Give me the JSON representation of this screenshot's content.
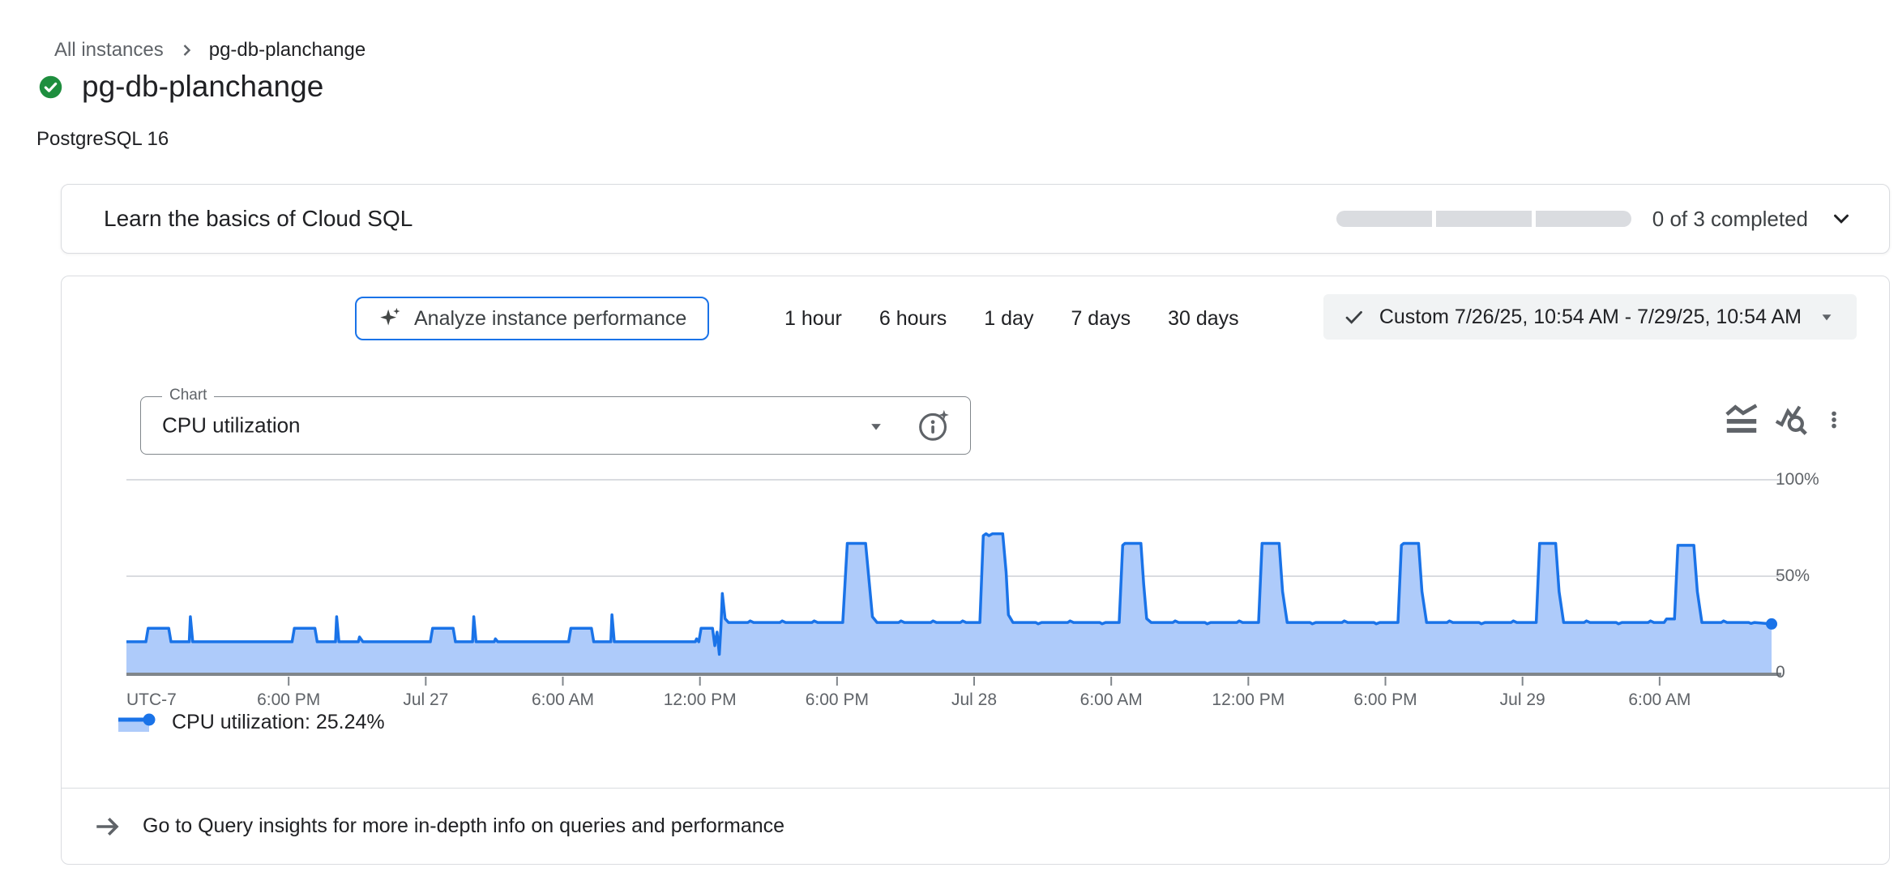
{
  "colors": {
    "accent_blue": "#1a73e8",
    "chart_line": "#1a73e8",
    "chart_fill": "#aecbfa",
    "success_green": "#1e8e3e",
    "text_dark": "#202124",
    "text_gray": "#5f6368",
    "border_gray": "#dadce0",
    "pill_bg": "#f1f3f4",
    "axis_gray": "#80868b"
  },
  "breadcrumb": {
    "root": "All instances",
    "current": "pg-db-planchange"
  },
  "header": {
    "title": "pg-db-planchange",
    "subtitle": "PostgreSQL 16",
    "status": "healthy"
  },
  "learn_card": {
    "title": "Learn the basics of Cloud SQL",
    "progress_label": "0 of 3 completed",
    "segments_total": 3,
    "segments_completed": 0
  },
  "toolbar": {
    "analyze_button": "Analyze instance performance",
    "ranges": [
      "1 hour",
      "6 hours",
      "1 day",
      "7 days",
      "30 days"
    ],
    "custom_range": "Custom 7/26/25, 10:54 AM - 7/29/25, 10:54 AM"
  },
  "chart_card": {
    "select_label": "Chart",
    "select_value": "CPU utilization",
    "legend_text": "CPU utilization: 25.24%",
    "footer_link": "Go to Query insights for more in-depth info on queries and performance"
  },
  "chart_data": {
    "type": "area",
    "title": "CPU utilization",
    "ylabel": "CPU utilization (%)",
    "ylim": [
      0,
      100
    ],
    "yticks": [
      {
        "v": 100,
        "label": "100%"
      },
      {
        "v": 50,
        "label": "50%"
      },
      {
        "v": 0,
        "label": "0"
      }
    ],
    "gridlines": [
      100,
      50
    ],
    "grid": true,
    "legend_position": "bottom-left",
    "x_axis_note": "UTC-7",
    "x_unit": "hours since 7/26/25 10:54 AM (UTC-7)",
    "xlim": [
      0,
      72
    ],
    "xticks": [
      {
        "h": 7.1,
        "label": "6:00 PM"
      },
      {
        "h": 13.1,
        "label": "Jul 27"
      },
      {
        "h": 19.1,
        "label": "6:00 AM"
      },
      {
        "h": 25.1,
        "label": "12:00 PM"
      },
      {
        "h": 31.1,
        "label": "6:00 PM"
      },
      {
        "h": 37.1,
        "label": "Jul 28"
      },
      {
        "h": 43.1,
        "label": "6:00 AM"
      },
      {
        "h": 49.1,
        "label": "12:00 PM"
      },
      {
        "h": 55.1,
        "label": "6:00 PM"
      },
      {
        "h": 61.1,
        "label": "Jul 29"
      },
      {
        "h": 67.1,
        "label": "6:00 AM"
      }
    ],
    "series": [
      {
        "name": "CPU utilization",
        "current_value": 25.24,
        "unit": "%",
        "points": [
          [
            0,
            16
          ],
          [
            0.85,
            16
          ],
          [
            0.95,
            23
          ],
          [
            1.85,
            23
          ],
          [
            1.95,
            16
          ],
          [
            2.75,
            16
          ],
          [
            2.8,
            29
          ],
          [
            2.9,
            16
          ],
          [
            7.25,
            16
          ],
          [
            7.35,
            23
          ],
          [
            8.25,
            23
          ],
          [
            8.35,
            16
          ],
          [
            9.15,
            16
          ],
          [
            9.2,
            29
          ],
          [
            9.3,
            16
          ],
          [
            10.15,
            16
          ],
          [
            10.2,
            18.5
          ],
          [
            10.35,
            16
          ],
          [
            13.3,
            16
          ],
          [
            13.4,
            23
          ],
          [
            14.3,
            23
          ],
          [
            14.4,
            16
          ],
          [
            15.15,
            16
          ],
          [
            15.2,
            29
          ],
          [
            15.3,
            16
          ],
          [
            16.1,
            16
          ],
          [
            16.15,
            17.5
          ],
          [
            16.25,
            16
          ],
          [
            19.35,
            16
          ],
          [
            19.45,
            23
          ],
          [
            20.35,
            23
          ],
          [
            20.45,
            16
          ],
          [
            21.2,
            16
          ],
          [
            21.25,
            30
          ],
          [
            21.35,
            16
          ],
          [
            24.9,
            16
          ],
          [
            24.95,
            17.5
          ],
          [
            25.05,
            16
          ],
          [
            25.15,
            23
          ],
          [
            25.65,
            23
          ],
          [
            25.75,
            14
          ],
          [
            25.85,
            21
          ],
          [
            25.95,
            9.5
          ],
          [
            26.02,
            24
          ],
          [
            26.08,
            41
          ],
          [
            26.2,
            28
          ],
          [
            26.35,
            26
          ],
          [
            27.2,
            26
          ],
          [
            27.3,
            26.8
          ],
          [
            27.45,
            26
          ],
          [
            28.6,
            26
          ],
          [
            28.7,
            26.8
          ],
          [
            28.85,
            26
          ],
          [
            30,
            26
          ],
          [
            30.1,
            26.8
          ],
          [
            30.25,
            26
          ],
          [
            31.35,
            26
          ],
          [
            31.55,
            67
          ],
          [
            32.35,
            67
          ],
          [
            32.5,
            48
          ],
          [
            32.65,
            29
          ],
          [
            32.85,
            26
          ],
          [
            33.8,
            26
          ],
          [
            33.9,
            26.8
          ],
          [
            34.05,
            26
          ],
          [
            35.2,
            26
          ],
          [
            35.3,
            26.8
          ],
          [
            35.45,
            26
          ],
          [
            36.5,
            26
          ],
          [
            36.6,
            26.8
          ],
          [
            36.75,
            26
          ],
          [
            37.35,
            26
          ],
          [
            37.5,
            71
          ],
          [
            37.62,
            72
          ],
          [
            37.75,
            71
          ],
          [
            37.9,
            72
          ],
          [
            38.35,
            72
          ],
          [
            38.5,
            52
          ],
          [
            38.6,
            30
          ],
          [
            38.8,
            26
          ],
          [
            39.8,
            26
          ],
          [
            39.9,
            25.3
          ],
          [
            40.05,
            26
          ],
          [
            41.2,
            26
          ],
          [
            41.3,
            26.8
          ],
          [
            41.45,
            26
          ],
          [
            42.6,
            26
          ],
          [
            42.7,
            25.3
          ],
          [
            42.85,
            26
          ],
          [
            43.45,
            26
          ],
          [
            43.6,
            66
          ],
          [
            43.7,
            67
          ],
          [
            44.4,
            67
          ],
          [
            44.52,
            46
          ],
          [
            44.65,
            28
          ],
          [
            44.85,
            26
          ],
          [
            45.8,
            26
          ],
          [
            45.9,
            26.8
          ],
          [
            46.05,
            26
          ],
          [
            47.2,
            26
          ],
          [
            47.3,
            25.3
          ],
          [
            47.45,
            26
          ],
          [
            48.6,
            26
          ],
          [
            48.7,
            26.8
          ],
          [
            48.85,
            26
          ],
          [
            49.55,
            26
          ],
          [
            49.7,
            67
          ],
          [
            50.45,
            67
          ],
          [
            50.6,
            42
          ],
          [
            50.8,
            26
          ],
          [
            51.8,
            26
          ],
          [
            51.9,
            25.3
          ],
          [
            52.05,
            26
          ],
          [
            53.2,
            26
          ],
          [
            53.3,
            26.8
          ],
          [
            53.45,
            26
          ],
          [
            54.6,
            26
          ],
          [
            54.7,
            25.3
          ],
          [
            54.85,
            26
          ],
          [
            55.65,
            26
          ],
          [
            55.8,
            66
          ],
          [
            55.9,
            67
          ],
          [
            56.55,
            67
          ],
          [
            56.7,
            42
          ],
          [
            56.9,
            26
          ],
          [
            57.8,
            26
          ],
          [
            57.9,
            26.8
          ],
          [
            58.05,
            26
          ],
          [
            59.2,
            26
          ],
          [
            59.3,
            25.3
          ],
          [
            59.45,
            26
          ],
          [
            60.6,
            26
          ],
          [
            60.7,
            26.8
          ],
          [
            60.85,
            26
          ],
          [
            61.7,
            26
          ],
          [
            61.85,
            67
          ],
          [
            62.55,
            67
          ],
          [
            62.7,
            42
          ],
          [
            62.9,
            26
          ],
          [
            63.8,
            26
          ],
          [
            63.9,
            26.8
          ],
          [
            64.05,
            26
          ],
          [
            65.2,
            26
          ],
          [
            65.3,
            25.3
          ],
          [
            65.45,
            26
          ],
          [
            66.6,
            26
          ],
          [
            66.7,
            26.8
          ],
          [
            66.85,
            26
          ],
          [
            67.3,
            26
          ],
          [
            67.4,
            27.8
          ],
          [
            67.75,
            27.8
          ],
          [
            67.9,
            66
          ],
          [
            68.6,
            66
          ],
          [
            68.75,
            42
          ],
          [
            68.95,
            26
          ],
          [
            69.8,
            26
          ],
          [
            69.9,
            26.8
          ],
          [
            70.05,
            26
          ],
          [
            71,
            26
          ],
          [
            71.1,
            25.5
          ],
          [
            71.25,
            26
          ],
          [
            72,
            25.24
          ]
        ]
      }
    ]
  }
}
